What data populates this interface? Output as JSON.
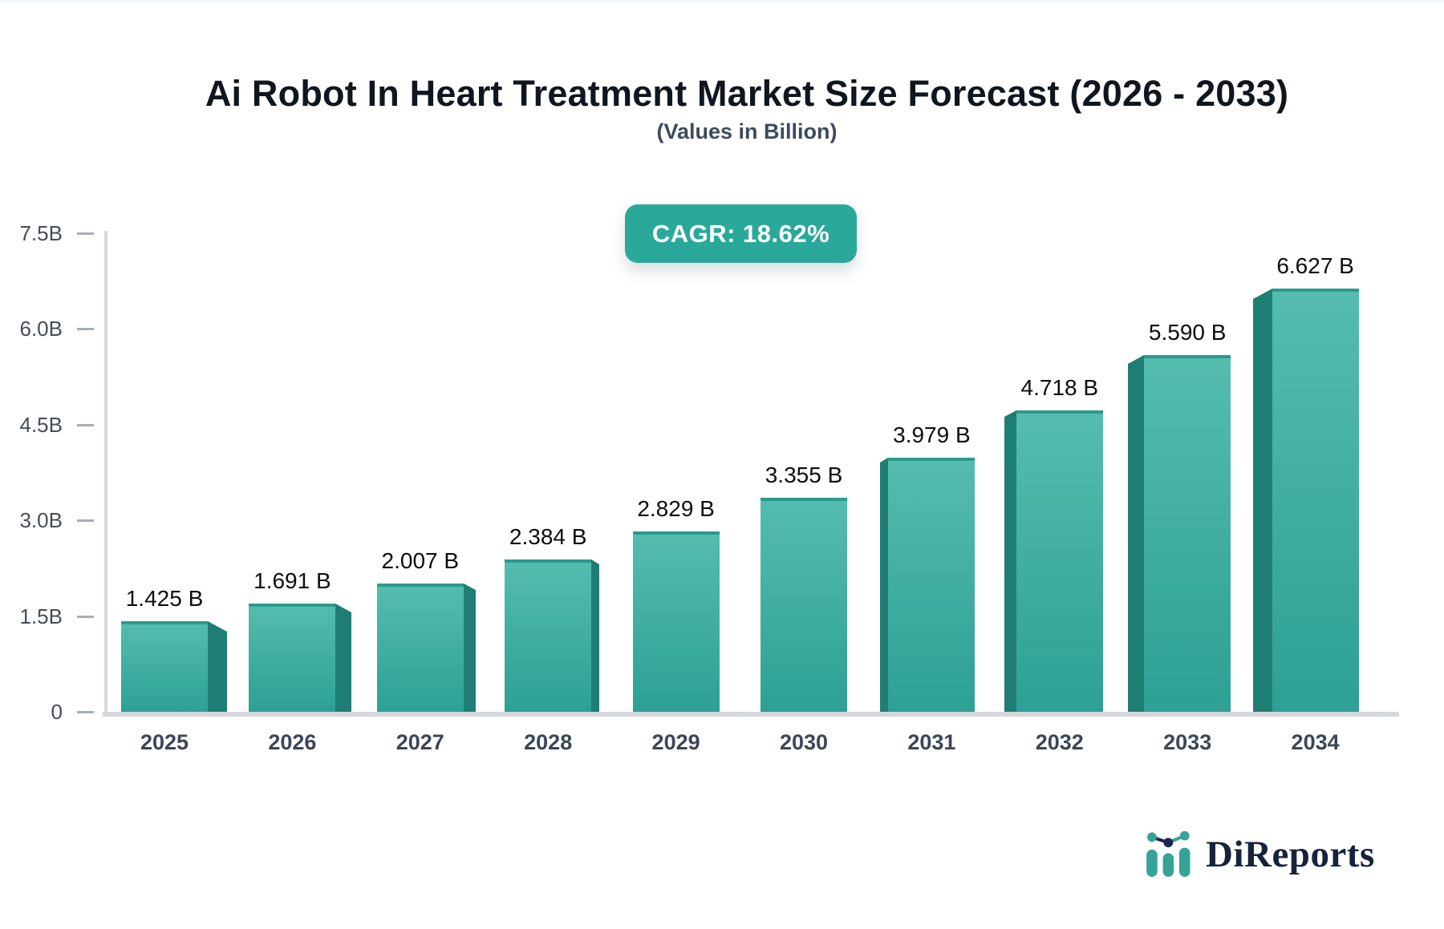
{
  "title": "Ai Robot In Heart Treatment Market Size Forecast (2026 - 2033)",
  "subtitle": "(Values in Billion)",
  "badge": {
    "label": "CAGR: 18.62%",
    "bg": "#2aa99b"
  },
  "logo": {
    "text": "DiReports"
  },
  "colors": {
    "bar_face_top": "#55bcae",
    "bar_face_bottom": "#2da095",
    "bar_top_edge": "#2b9a8e",
    "bar_side": "#1f7e74",
    "axis": "#d4d7dc",
    "tick_dash": "#a8adb6",
    "badge_bg": "#2aa99b",
    "logo_teal": "#35a398",
    "logo_navy": "#1b2a4a"
  },
  "chart_data": {
    "type": "bar",
    "title": "Ai Robot In Heart Treatment Market Size Forecast (2026 - 2033)",
    "subtitle": "(Values in Billion)",
    "cagr": "18.62%",
    "xlabel": "",
    "ylabel": "",
    "ylim": [
      0,
      7.5
    ],
    "grid": false,
    "legend": false,
    "categories": [
      "2025",
      "2026",
      "2027",
      "2028",
      "2029",
      "2030",
      "2031",
      "2032",
      "2033",
      "2034"
    ],
    "values": [
      1.425,
      1.691,
      2.007,
      2.384,
      2.829,
      3.355,
      3.979,
      4.718,
      5.59,
      6.627
    ],
    "value_labels": [
      "1.425 B",
      "1.691 B",
      "2.007 B",
      "2.384 B",
      "2.829 B",
      "3.355 B",
      "3.979 B",
      "4.718 B",
      "5.590 B",
      "6.627 B"
    ],
    "yticks": [
      {
        "label": "0",
        "value": 0
      },
      {
        "label": "1.5B",
        "value": 1.5
      },
      {
        "label": "3.0B",
        "value": 3.0
      },
      {
        "label": "4.5B",
        "value": 4.5
      },
      {
        "label": "6.0B",
        "value": 6.0
      },
      {
        "label": "7.5B",
        "value": 7.5
      }
    ]
  }
}
